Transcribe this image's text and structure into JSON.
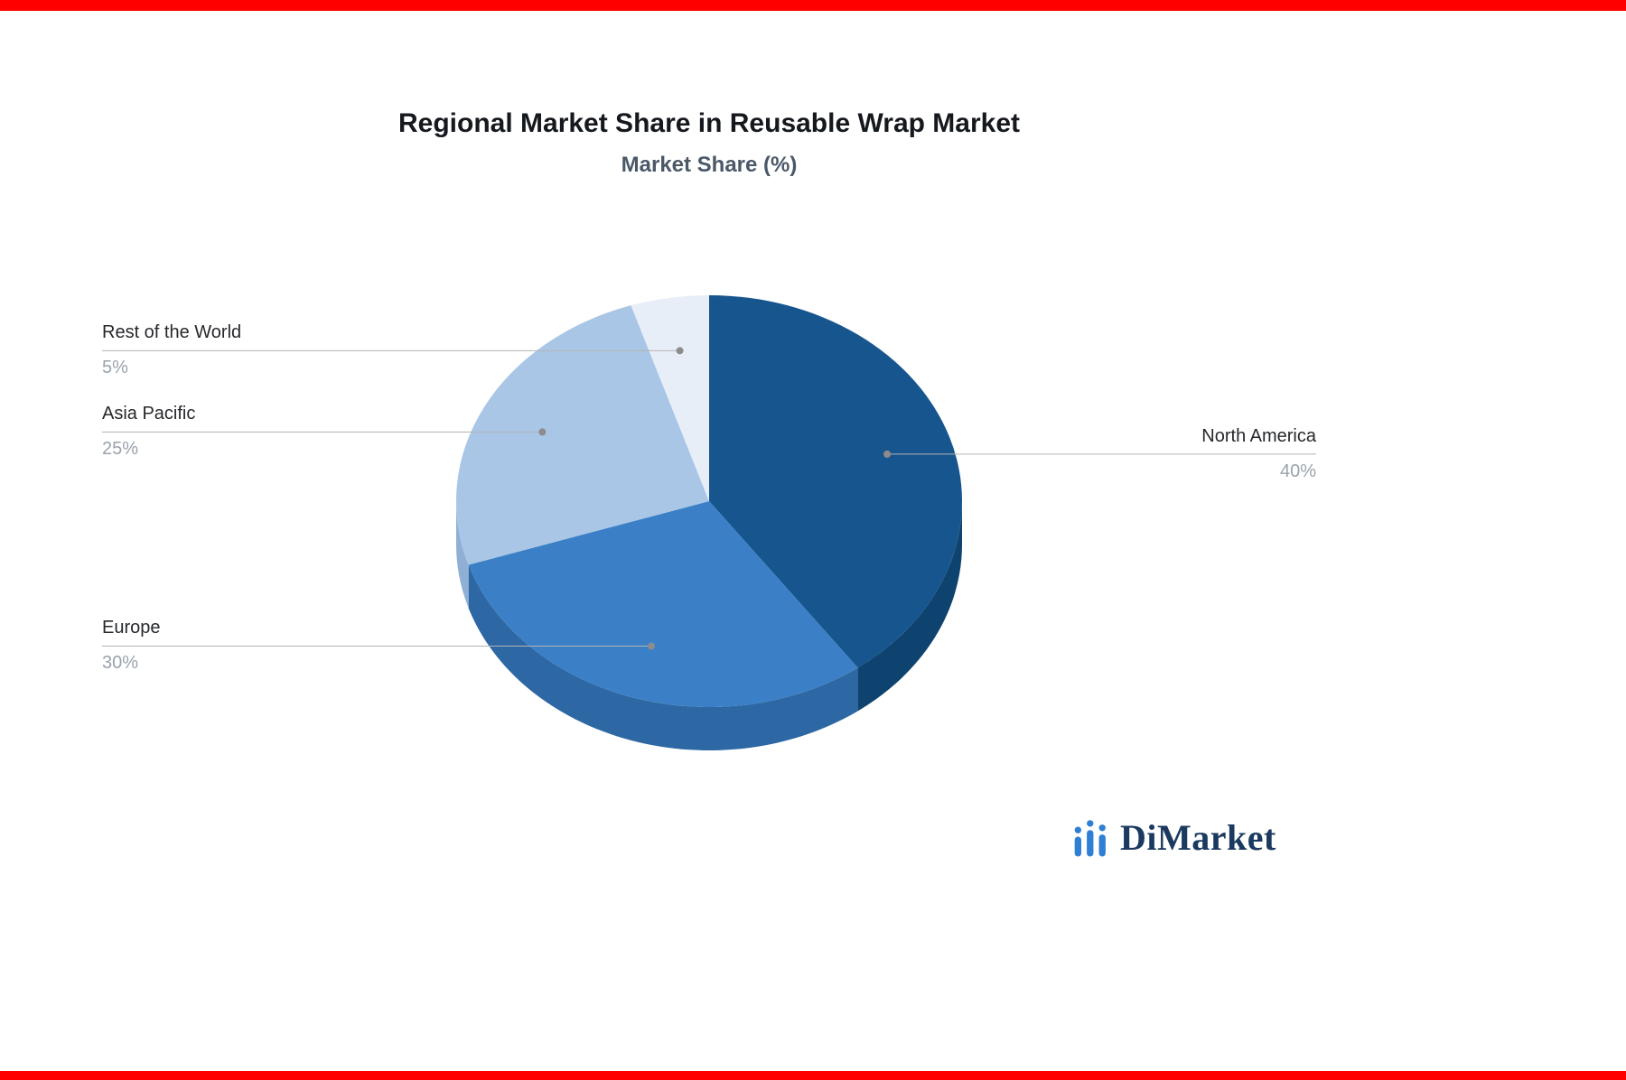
{
  "page": {
    "background_color": "#ffffff",
    "accent_bar_color": "#fe0000"
  },
  "header": {
    "title": "Regional Market Share in Reusable Wrap Market",
    "subtitle": "Market Share (%)"
  },
  "chart_data": {
    "type": "pie",
    "style": "3d",
    "title": "Regional Market Share in Reusable Wrap Market",
    "subtitle": "Market Share (%)",
    "unit": "%",
    "start_angle_deg": 0,
    "direction": "clockwise",
    "legend_position": "callout-labels",
    "slices": [
      {
        "label": "North America",
        "value": 40,
        "display_value": "40%",
        "color": "#17558e",
        "side_color": "#0f436f",
        "label_side": "right"
      },
      {
        "label": "Europe",
        "value": 30,
        "display_value": "30%",
        "color": "#3b80c6",
        "side_color": "#2d68a4",
        "label_side": "left"
      },
      {
        "label": "Asia Pacific",
        "value": 25,
        "display_value": "25%",
        "color": "#a9c6e6",
        "side_color": "#8fb0d4",
        "label_side": "left"
      },
      {
        "label": "Rest of the World",
        "value": 5,
        "display_value": "5%",
        "color": "#e8eef7",
        "side_color": "#cfd9e8",
        "label_side": "left"
      }
    ],
    "callout_line_color": "#b3b3b3",
    "callout_dot_color": "#8c8c8c",
    "label_name_color": "#26282b",
    "label_value_color": "#9aa3ad"
  },
  "branding": {
    "logo_text": "DiMarket",
    "logo_icon": "bar-chart-logo-icon",
    "text_color": "#1b3a60",
    "icon_color": "#2f7fd4"
  }
}
